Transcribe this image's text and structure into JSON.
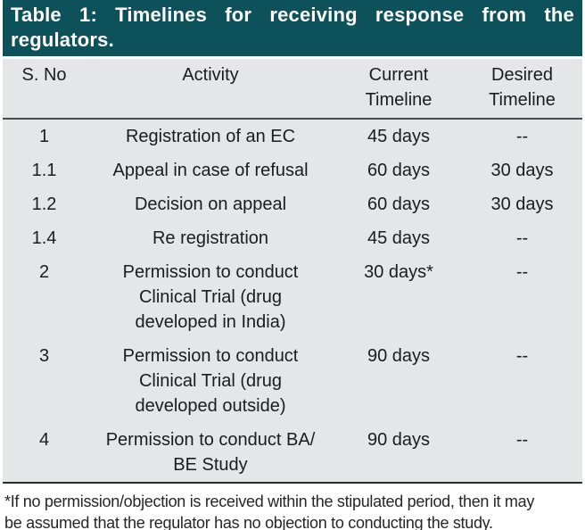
{
  "title": {
    "line1": "Table 1: Timelines for receiving response from the",
    "line2": "regulators."
  },
  "table": {
    "columns": {
      "sno": "S. No",
      "activity": "Activity",
      "current": "Current\nTimeline",
      "desired": "Desired\nTimeline"
    },
    "rows": [
      {
        "sno": "1",
        "activity": "Registration of an EC",
        "current": "45 days",
        "desired": "--"
      },
      {
        "sno": "1.1",
        "activity": "Appeal in case of refusal",
        "current": "60 days",
        "desired": "30 days"
      },
      {
        "sno": "1.2",
        "activity": "Decision on appeal",
        "current": "60 days",
        "desired": "30 days"
      },
      {
        "sno": "1.4",
        "activity": "Re registration",
        "current": "45 days",
        "desired": "--"
      },
      {
        "sno": "2",
        "activity": "Permission to conduct\nClinical Trial (drug\ndeveloped in India)",
        "current": "30 days*",
        "desired": "--"
      },
      {
        "sno": "3",
        "activity": "Permission to conduct\nClinical Trial (drug\ndeveloped outside)",
        "current": "90 days",
        "desired": "--"
      },
      {
        "sno": "4",
        "activity": "Permission to conduct BA/\nBE Study",
        "current": "90 days",
        "desired": "--"
      }
    ]
  },
  "footnote": "*If no permission/objection is received within the stipulated period, then it may\nbe assumed that the regulator has no objection to conducting the study.",
  "colors": {
    "caption_bg": "#0d515a",
    "caption_text": "#ffffff",
    "table_bg": "#e5e6e7",
    "rule_dark": "#2d2d2d",
    "rule_header": "#4c4c4c",
    "body_text": "#1c1c1c"
  }
}
